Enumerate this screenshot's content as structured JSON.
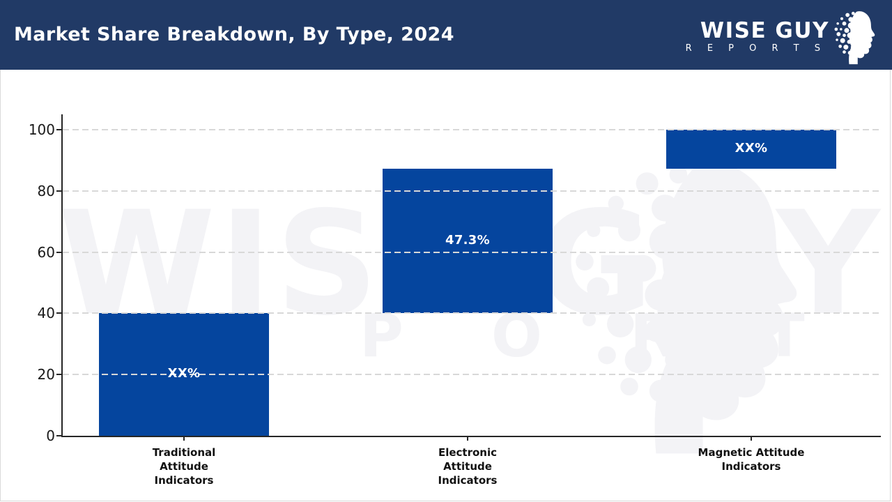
{
  "header": {
    "title": "Market Share Breakdown, By Type, 2024",
    "bg_color": "#213a66",
    "logo": {
      "wordmark": "WISE GUY",
      "subtext": "R E P O R T S"
    }
  },
  "watermark": {
    "wordmark": "WISE GUY",
    "subtext": "R E P O R T S"
  },
  "chart_data": {
    "type": "bar",
    "subtype": "waterfall",
    "title": "Market Share Breakdown, By Type, 2024",
    "categories": [
      "Traditional\nAttitude\nIndicators",
      "Electronic\nAttitude\nIndicators",
      "Magnetic Attitude\nIndicators"
    ],
    "bars": [
      {
        "category": "Traditional Attitude Indicators",
        "base": 0,
        "top": 40,
        "value": 40,
        "label": "XX%"
      },
      {
        "category": "Electronic Attitude Indicators",
        "base": 40,
        "top": 87.3,
        "value": 47.3,
        "label": "47.3%"
      },
      {
        "category": "Magnetic Attitude Indicators",
        "base": 87.3,
        "top": 100,
        "value": 12.7,
        "label": "XX%"
      }
    ],
    "yticks": [
      0,
      20,
      40,
      60,
      80,
      100
    ],
    "ylim": [
      0,
      100
    ],
    "xlabel": "",
    "ylabel": "",
    "grid": "dashed-horizontal",
    "legend": "none",
    "bar_color": "#05459e",
    "bar_label_color": "#ffffff",
    "axis_color": "#262626",
    "grid_color": "#d8d8d8"
  }
}
